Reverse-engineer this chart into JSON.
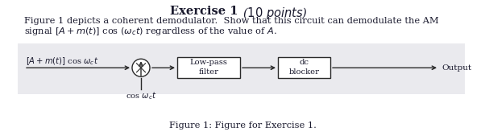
{
  "bg_color": "#ffffff",
  "box_color": "#ffffff",
  "box_edge_color": "#2a2a2a",
  "arrow_color": "#2a2a2a",
  "circle_color": "#2a2a2a",
  "diagram_bg": "#eaeaee",
  "text_color": "#1a1a2e",
  "title_normal": "Exercise 1 ",
  "title_italic": "(",
  "title_italic2": "10 points",
  "title_italic3": ")",
  "body_line1": "Figure 1 depicts a coherent demodulator.  Show that this circuit can demodulate the AM",
  "body_line2_pre": "signal ",
  "body_line2_post": " regardless of the value of ",
  "caption": "Figure 1: Figure for Exercise 1.",
  "input_label_pre": "[A + m(t)] cos ",
  "local_osc_pre": "cos ",
  "box1_line1": "Low-pass",
  "box1_line2": "filter",
  "box2_line1": "dc",
  "box2_line2": "blocker",
  "output_label": "Output",
  "fig_width": 6.02,
  "fig_height": 1.74,
  "dpi": 100
}
